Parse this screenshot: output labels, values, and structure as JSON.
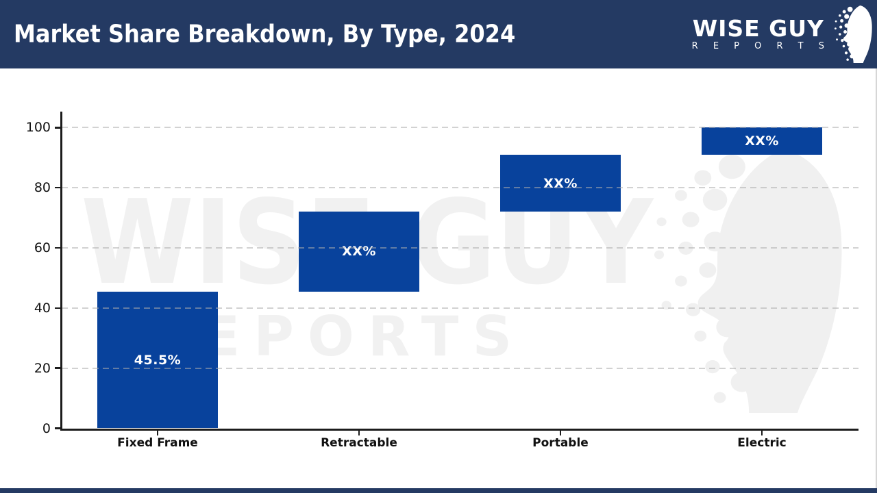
{
  "header": {
    "title": "Market Share Breakdown, By Type, 2024",
    "logo": {
      "brand_top": "WISE GUY",
      "brand_bottom": "R E P O R T S",
      "face_icon": "dotted-face-profile-icon"
    }
  },
  "watermark": {
    "brand_top": "WISE GUY",
    "brand_bottom": "REPORTS",
    "face_icon": "dotted-face-profile-icon"
  },
  "chart_data": {
    "type": "bar",
    "subtype": "waterfall",
    "title": "Market Share Breakdown, By Type, 2024",
    "categories": [
      "Fixed Frame",
      "Retractable",
      "Portable",
      "Electric"
    ],
    "series": [
      {
        "name": "Market share (%)",
        "segments": [
          {
            "category": "Fixed Frame",
            "label": "45.5%",
            "value_shown": 45.5,
            "start": 0,
            "end": 45.5
          },
          {
            "category": "Retractable",
            "label": "XX%",
            "value_shown": null,
            "start": 45.5,
            "end": 72
          },
          {
            "category": "Portable",
            "label": "XX%",
            "value_shown": null,
            "start": 72,
            "end": 91
          },
          {
            "category": "Electric",
            "label": "XX%",
            "value_shown": null,
            "start": 91,
            "end": 100
          }
        ]
      }
    ],
    "xlabel": "",
    "ylabel": "",
    "ylim": [
      0,
      100
    ],
    "yticks": [
      "0",
      "20",
      "40",
      "60",
      "80",
      "100"
    ],
    "grid": "horizontal-dashed",
    "legend": "none",
    "colors": {
      "bar": "#08429c",
      "header_bg": "#243a63",
      "footer_bg": "#243a63",
      "gridline": "#dcdcdc",
      "axis": "#1c1c1c",
      "bar_label_text": "#ffffff",
      "watermark": "#f1f1f1"
    }
  }
}
